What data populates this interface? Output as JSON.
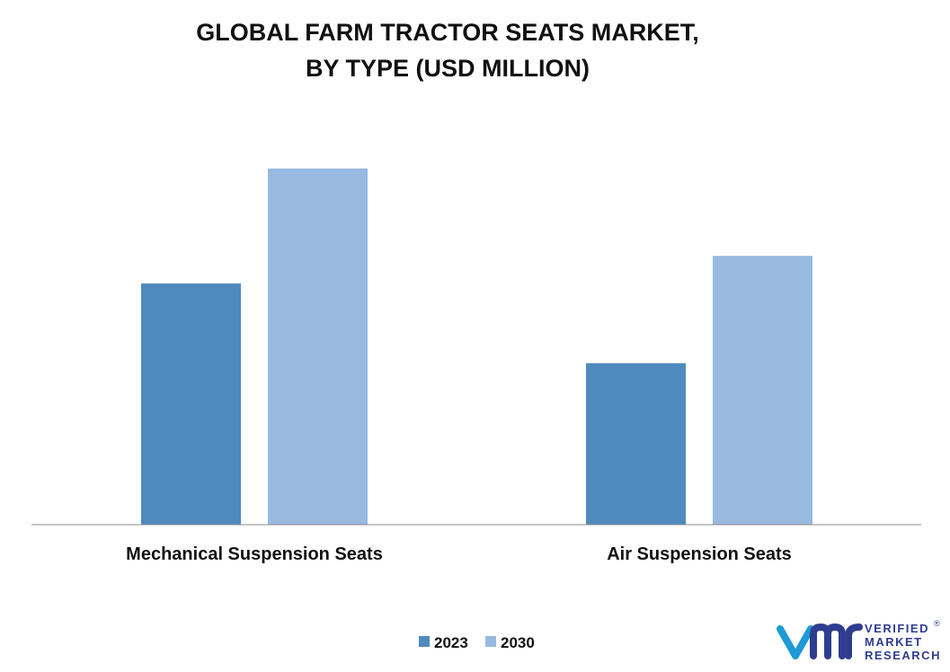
{
  "chart_data": {
    "type": "bar",
    "title_lines": [
      "GLOBAL FARM TRACTOR SEATS MARKET,",
      "BY TYPE (USD MILLION)"
    ],
    "categories": [
      "Mechanical Suspension Seats",
      "Air Suspension Seats"
    ],
    "series": [
      {
        "name": "2023",
        "color": "#4f8abe",
        "values": [
          254,
          170
        ]
      },
      {
        "name": "2030",
        "color": "#98b9e0",
        "values": [
          375,
          283
        ]
      }
    ],
    "ylim": [
      0,
      420
    ],
    "grid": false,
    "legend_position": "bottom-center",
    "y_axis_visible": false
  },
  "logo": {
    "lines": [
      "VERIFIED",
      "MARKET",
      "RESEARCH"
    ],
    "registered": "®",
    "color": "#2e3d8f",
    "icon": "vmr-logo-icon"
  }
}
